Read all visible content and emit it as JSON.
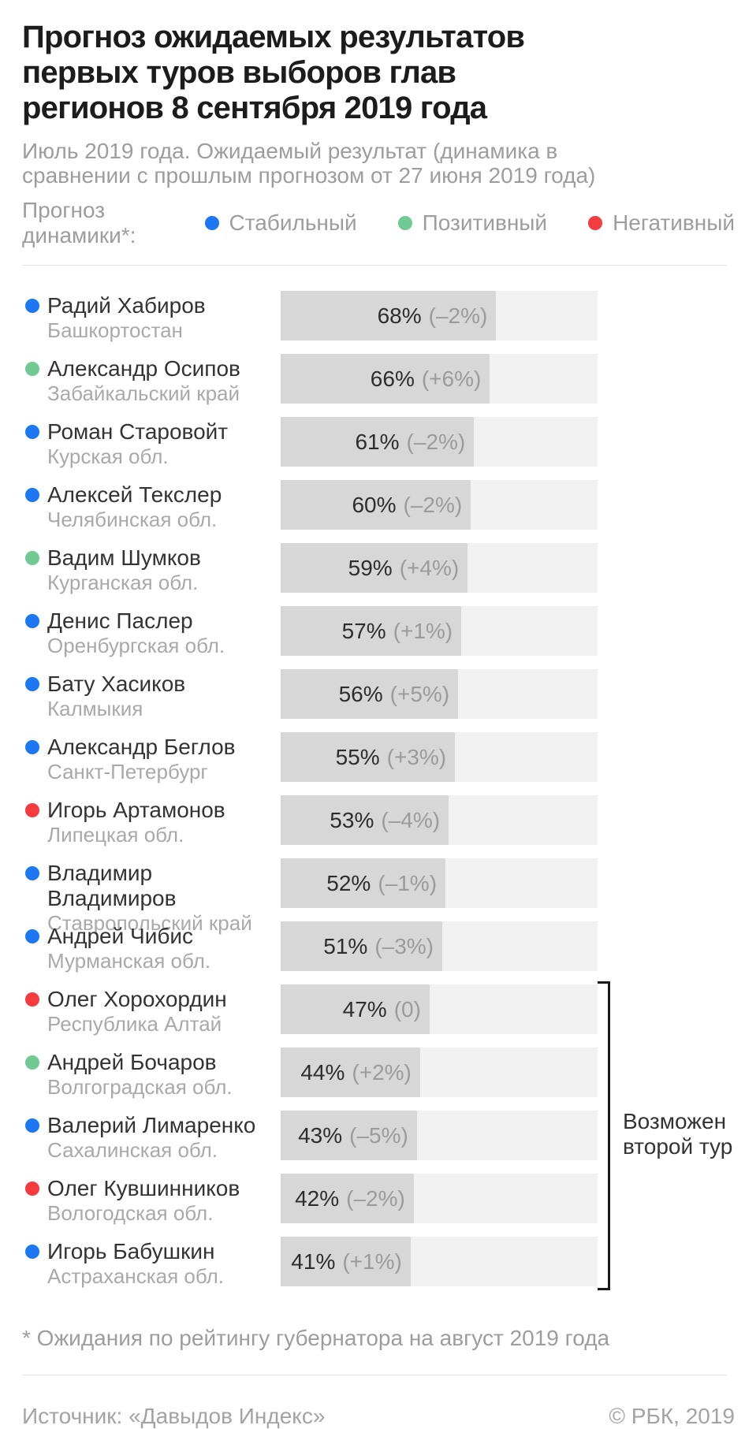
{
  "header": {
    "title": "Прогноз ожидаемых результатов первых туров выборов глав регионов 8 сентября 2019 года",
    "subtitle": "Июль 2019 года. Ожидаемый результат (динамика в сравнении с прошлым прогнозом от 27 июня 2019 года)",
    "legend_label": "Прогноз динамики*:",
    "legend": [
      {
        "status": "stable",
        "label": "Стабильный"
      },
      {
        "status": "positive",
        "label": "Позитивный"
      },
      {
        "status": "negative",
        "label": "Негативный"
      }
    ]
  },
  "colors": {
    "stable": "#1b78f2",
    "positive": "#71c993",
    "negative": "#f43b40",
    "bar_fill": "#d7d7d7",
    "bar_track": "#f2f2f2"
  },
  "chart_data": {
    "type": "bar",
    "unit": "percent",
    "xlim": [
      0,
      100
    ],
    "value_note": "delta vs forecast of 27.06.2019",
    "rows": [
      {
        "name": "Радий Хабиров",
        "region": "Башкортостан",
        "status": "stable",
        "value": 68,
        "value_label": "68%",
        "delta_label": "(–2%)"
      },
      {
        "name": "Александр Осипов",
        "region": "Забайкальский край",
        "status": "positive",
        "value": 66,
        "value_label": "66%",
        "delta_label": "(+6%)"
      },
      {
        "name": "Роман Старовойт",
        "region": "Курская обл.",
        "status": "stable",
        "value": 61,
        "value_label": "61%",
        "delta_label": "(–2%)"
      },
      {
        "name": "Алексей Текслер",
        "region": "Челябинская обл.",
        "status": "stable",
        "value": 60,
        "value_label": "60%",
        "delta_label": "(–2%)"
      },
      {
        "name": "Вадим Шумков",
        "region": "Курганская обл.",
        "status": "positive",
        "value": 59,
        "value_label": "59%",
        "delta_label": "(+4%)"
      },
      {
        "name": "Денис Паслер",
        "region": "Оренбургская обл.",
        "status": "stable",
        "value": 57,
        "value_label": "57%",
        "delta_label": "(+1%)"
      },
      {
        "name": "Бату Хасиков",
        "region": "Калмыкия",
        "status": "stable",
        "value": 56,
        "value_label": "56%",
        "delta_label": "(+5%)"
      },
      {
        "name": "Александр Беглов",
        "region": "Санкт-Петербург",
        "status": "stable",
        "value": 55,
        "value_label": "55%",
        "delta_label": "(+3%)"
      },
      {
        "name": "Игорь Артамонов",
        "region": "Липецкая обл.",
        "status": "negative",
        "value": 53,
        "value_label": "53%",
        "delta_label": "(–4%)"
      },
      {
        "name": "Владимир Владимиров",
        "region": "Ставропольский край",
        "status": "stable",
        "value": 52,
        "value_label": "52%",
        "delta_label": "(–1%)"
      },
      {
        "name": "Андрей Чибис",
        "region": "Мурманская обл.",
        "status": "stable",
        "value": 51,
        "value_label": "51%",
        "delta_label": "(–3%)"
      },
      {
        "name": "Олег Хорохордин",
        "region": "Республика Алтай",
        "status": "negative",
        "value": 47,
        "value_label": "47%",
        "delta_label": "(0)"
      },
      {
        "name": "Андрей Бочаров",
        "region": "Волгоградская обл.",
        "status": "positive",
        "value": 44,
        "value_label": "44%",
        "delta_label": "(+2%)"
      },
      {
        "name": "Валерий Лимаренко",
        "region": "Сахалинская обл.",
        "status": "stable",
        "value": 43,
        "value_label": "43%",
        "delta_label": "(–5%)"
      },
      {
        "name": "Олег Кувшинников",
        "region": "Вологодская обл.",
        "status": "negative",
        "value": 42,
        "value_label": "42%",
        "delta_label": "(–2%)"
      },
      {
        "name": "Игорь Бабушкин",
        "region": "Астраханская обл.",
        "status": "stable",
        "value": 41,
        "value_label": "41%",
        "delta_label": "(+1%)"
      }
    ],
    "annotation": "Возможен второй тур",
    "annotation_row_range": [
      12,
      16
    ]
  },
  "footnote": "* Ожидания по рейтингу губернатора на август 2019 года",
  "footer": {
    "source": "Источник: «Давыдов Индекс»",
    "copyright": "© РБК, 2019"
  }
}
